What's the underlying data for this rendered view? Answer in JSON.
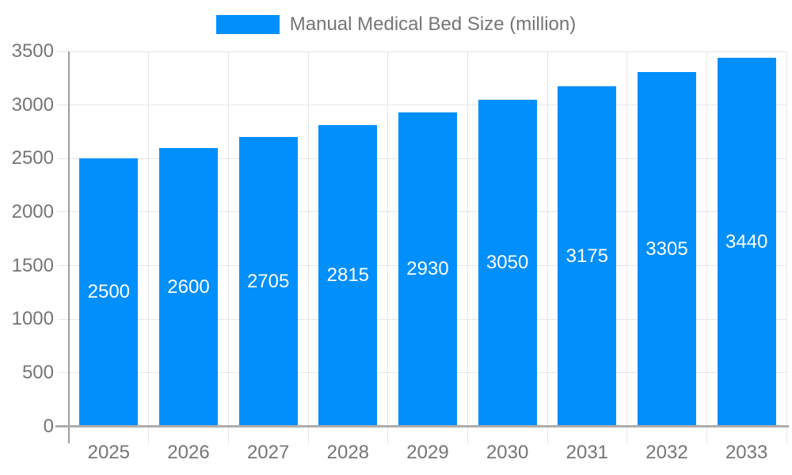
{
  "legend": {
    "label": "Manual Medical Bed Size (million)",
    "swatch_color": "#008FFB"
  },
  "chart_data": {
    "type": "bar",
    "title": "Manual Medical Bed Size (million)",
    "categories": [
      "2025",
      "2026",
      "2027",
      "2028",
      "2029",
      "2030",
      "2031",
      "2032",
      "2033"
    ],
    "values": [
      2500,
      2600,
      2705,
      2815,
      2930,
      3050,
      3175,
      3305,
      3440
    ],
    "xlabel": "",
    "ylabel": "",
    "ylim": [
      0,
      3500
    ],
    "ytick_step": 500,
    "grid": true,
    "legend_position": "top",
    "bar_color": "#008FFB",
    "bar_label_color": "#ffffff"
  },
  "colors": {
    "axis_text": "#757575",
    "grid_line": "#e6e6e6",
    "axis_line": "#9e9e9e",
    "background": "#ffffff"
  }
}
